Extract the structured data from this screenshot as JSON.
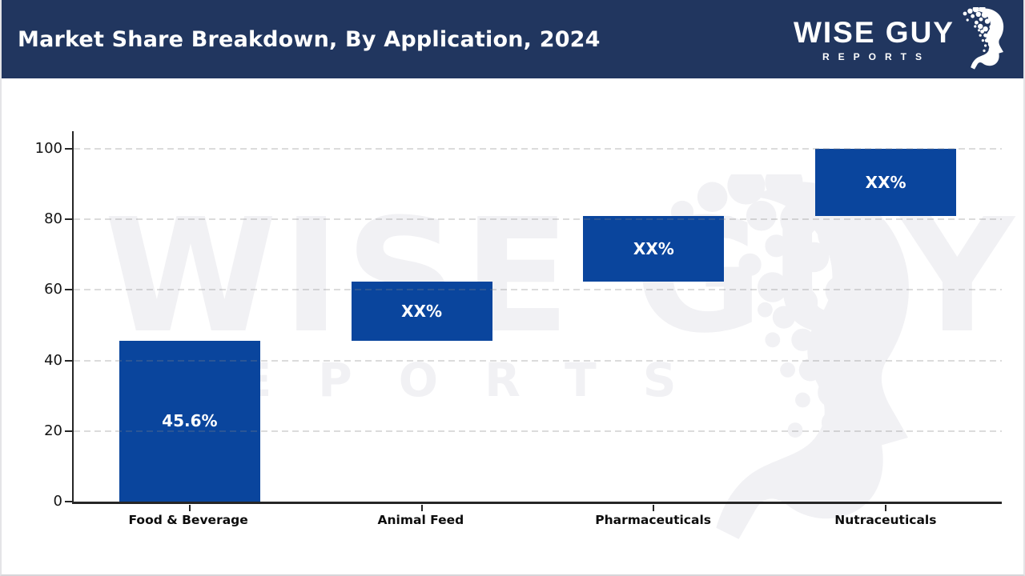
{
  "header": {
    "title": "Market Share Breakdown, By Application, 2024",
    "logo": {
      "brand_line1": "WISE GUY",
      "brand_line2": "REPORTS"
    }
  },
  "watermark": {
    "line1": "WISE GUY",
    "line2": "REPORTS"
  },
  "colors": {
    "header_bg": "#21365F",
    "title_text": "#FFFFFF",
    "bar": "#0A459D",
    "label_on_bar": "#FFFFFF",
    "axis": "#262626",
    "tick_text": "#141414",
    "watermark": "#F1F1F4"
  },
  "chart_data": {
    "type": "bar",
    "subtype": "waterfall",
    "title": "Market Share Breakdown, By Application, 2024",
    "categories": [
      "Food & Beverage",
      "Animal Feed",
      "Pharmaceuticals",
      "Nutraceuticals"
    ],
    "segments": [
      {
        "category": "Food & Beverage",
        "start": 0,
        "end": 45.6,
        "label": "45.6%"
      },
      {
        "category": "Animal Feed",
        "start": 45.6,
        "end": 62.4,
        "label": "XX%"
      },
      {
        "category": "Pharmaceuticals",
        "start": 62.4,
        "end": 81.0,
        "label": "XX%"
      },
      {
        "category": "Nutraceuticals",
        "start": 81.0,
        "end": 100.0,
        "label": "XX%"
      }
    ],
    "yticks": [
      0,
      20,
      40,
      60,
      80,
      100
    ],
    "ylim": [
      0,
      105
    ],
    "xlabel": "",
    "ylabel": "",
    "grid": "horizontal-dashed",
    "legend": "none"
  }
}
